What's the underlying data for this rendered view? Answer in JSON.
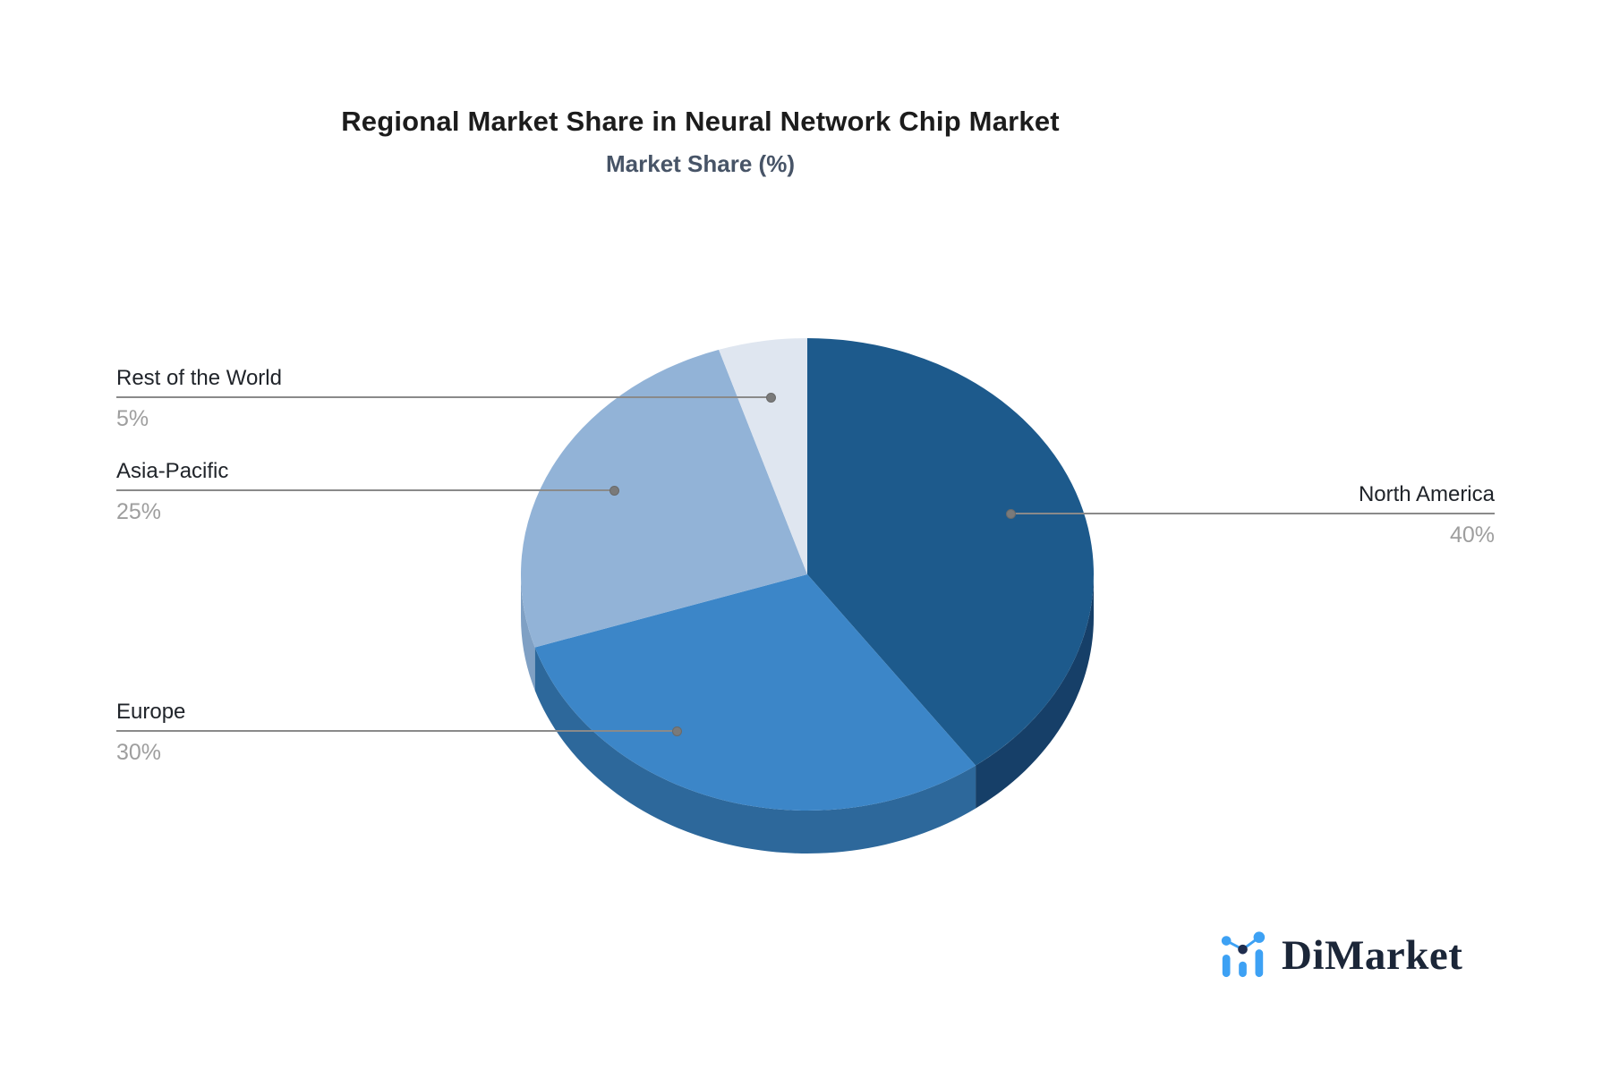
{
  "header": {
    "title": "Regional Market Share in Neural Network Chip Market",
    "subtitle": "Market Share (%)"
  },
  "chart_data": {
    "type": "pie",
    "style": "3d-pie",
    "title": "Regional Market Share in Neural Network Chip Market",
    "subtitle": "Market Share (%)",
    "unit": "%",
    "categories": [
      "North America",
      "Europe",
      "Asia-Pacific",
      "Rest of the World"
    ],
    "values": [
      40,
      30,
      25,
      5
    ],
    "labels": [
      "40%",
      "30%",
      "25%",
      "5%"
    ],
    "colors": [
      "#1D5A8C",
      "#3C86C8",
      "#92B3D7",
      "#DFE6F0"
    ],
    "side_colors": [
      "#163F68",
      "#2D689B",
      "#7FA0C4",
      "#C9D4E4"
    ],
    "start_angle_deg": 0,
    "direction": "clockwise",
    "legend_position": "callout-labels",
    "background": "#FFFFFF"
  },
  "branding": {
    "logo_text": "DiMarket",
    "logo_icon": "bar-line-chart-icon",
    "logo_bar_color": "#3DA1F4",
    "logo_mid_dot_color": "#1F2D4E",
    "logo_text_color": "#1B2638"
  }
}
